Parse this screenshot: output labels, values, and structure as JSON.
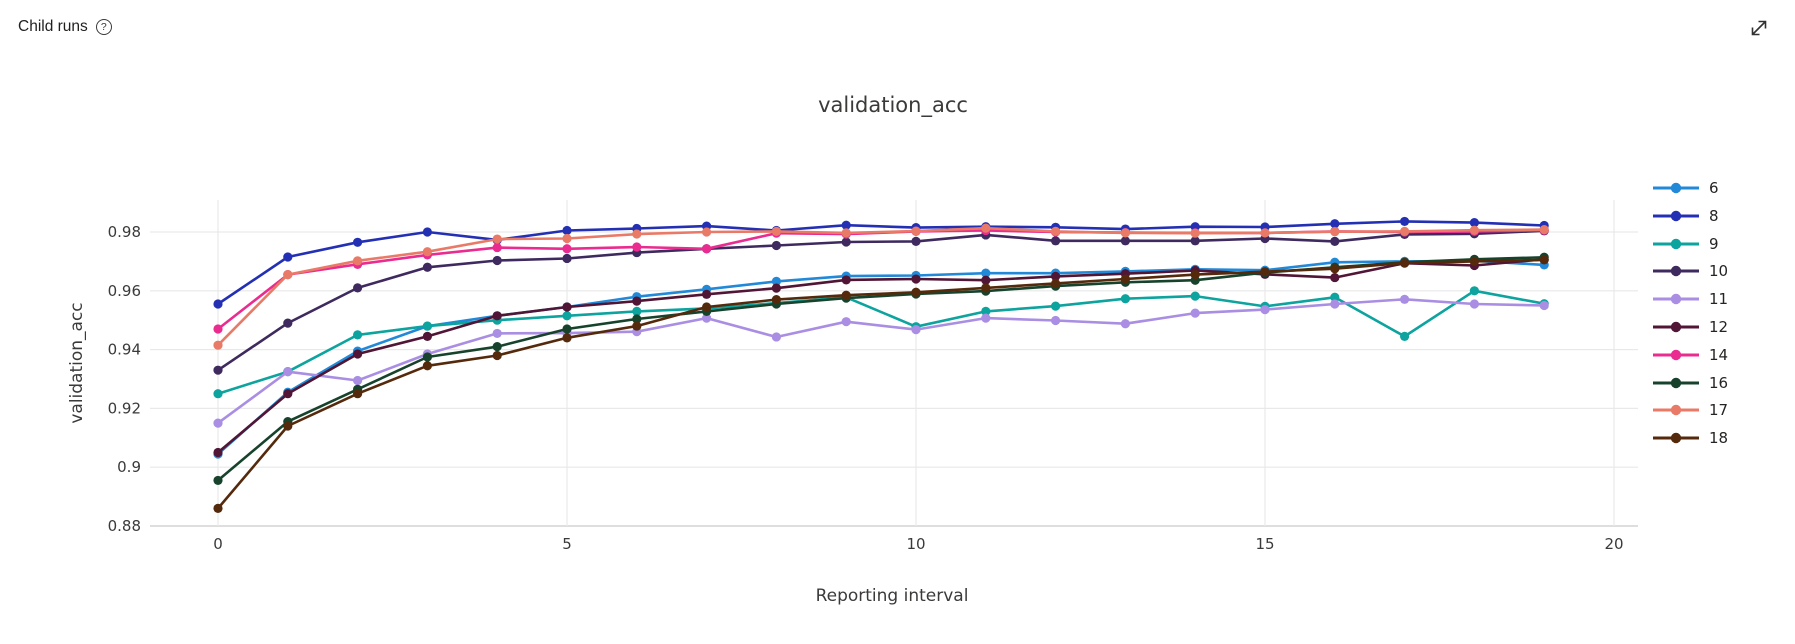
{
  "header": {
    "title": "Child runs",
    "help_icon": "question-mark-circle",
    "expand_icon": "expand-diagonal-arrow"
  },
  "colors": {
    "background": "#ffffff",
    "grid": "#e9e9e9",
    "axis_line": "#d4d4d4",
    "text": "#3b3a39",
    "legend_text": "#252423"
  },
  "chart_data": {
    "type": "line",
    "title": "validation_acc",
    "xlabel": "Reporting interval",
    "ylabel": "validation_acc",
    "grid": true,
    "legend_position": "right",
    "xlim": [
      -1,
      20.3
    ],
    "ylim": [
      0.88,
      0.991
    ],
    "x_ticks": [
      "0",
      "5",
      "10",
      "15",
      "20"
    ],
    "y_ticks": [
      "0.88",
      "0.9",
      "0.92",
      "0.94",
      "0.96",
      "0.98"
    ],
    "x": [
      0,
      1,
      2,
      3,
      4,
      5,
      6,
      7,
      8,
      9,
      10,
      11,
      12,
      13,
      14,
      15,
      16,
      17,
      18,
      19
    ],
    "series": [
      {
        "name": "6",
        "color": "#2189d8",
        "values": [
          0.9045,
          0.9255,
          0.9395,
          0.948,
          0.9515,
          0.9545,
          0.958,
          0.9605,
          0.9632,
          0.965,
          0.9652,
          0.966,
          0.966,
          0.9666,
          0.9673,
          0.967,
          0.9697,
          0.97,
          0.9702,
          0.9688
        ]
      },
      {
        "name": "8",
        "color": "#2430b4",
        "values": [
          0.9555,
          0.9715,
          0.9765,
          0.98,
          0.9773,
          0.9805,
          0.9812,
          0.982,
          0.9805,
          0.9823,
          0.9815,
          0.9818,
          0.9816,
          0.981,
          0.9818,
          0.9817,
          0.9828,
          0.9836,
          0.9832,
          0.9822
        ]
      },
      {
        "name": "9",
        "color": "#0da39e",
        "values": [
          0.925,
          0.9325,
          0.945,
          0.948,
          0.95,
          0.9515,
          0.953,
          0.954,
          0.9558,
          0.9578,
          0.9478,
          0.953,
          0.9548,
          0.9573,
          0.9582,
          0.9547,
          0.9578,
          0.9445,
          0.96,
          0.9556
        ]
      },
      {
        "name": "10",
        "color": "#3e2a5e",
        "values": [
          0.933,
          0.949,
          0.961,
          0.968,
          0.9703,
          0.971,
          0.973,
          0.9743,
          0.9754,
          0.9766,
          0.9768,
          0.979,
          0.977,
          0.977,
          0.977,
          0.9778,
          0.9768,
          0.9792,
          0.9794,
          0.9804
        ]
      },
      {
        "name": "11",
        "color": "#a98ee3",
        "values": [
          0.915,
          0.9325,
          0.9295,
          0.9385,
          0.9455,
          0.9456,
          0.9461,
          0.9507,
          0.9443,
          0.9495,
          0.9468,
          0.9507,
          0.9499,
          0.9488,
          0.9524,
          0.9536,
          0.9555,
          0.9571,
          0.9555,
          0.955
        ]
      },
      {
        "name": "12",
        "color": "#511535",
        "values": [
          0.905,
          0.925,
          0.9385,
          0.9445,
          0.9515,
          0.9545,
          0.9565,
          0.9588,
          0.9609,
          0.9637,
          0.964,
          0.9636,
          0.9649,
          0.9658,
          0.9669,
          0.9656,
          0.9645,
          0.9694,
          0.9686,
          0.9707
        ]
      },
      {
        "name": "14",
        "color": "#ea2c90",
        "values": [
          0.947,
          0.9655,
          0.969,
          0.9722,
          0.9747,
          0.9743,
          0.9749,
          0.9743,
          0.9796,
          0.9793,
          0.9802,
          0.9805,
          0.98,
          0.9798,
          0.9797,
          0.9797,
          0.9802,
          0.98,
          0.9802,
          0.9806
        ]
      },
      {
        "name": "16",
        "color": "#17432c",
        "values": [
          0.8955,
          0.9155,
          0.9265,
          0.9375,
          0.941,
          0.947,
          0.9504,
          0.953,
          0.9555,
          0.9575,
          0.9589,
          0.9599,
          0.9616,
          0.9629,
          0.9636,
          0.9662,
          0.968,
          0.9697,
          0.9707,
          0.9714
        ]
      },
      {
        "name": "17",
        "color": "#e97a67",
        "values": [
          0.9415,
          0.9655,
          0.9702,
          0.9733,
          0.9776,
          0.9778,
          0.9793,
          0.98,
          0.9802,
          0.9797,
          0.9803,
          0.9813,
          0.9802,
          0.9797,
          0.9796,
          0.9797,
          0.9801,
          0.9802,
          0.9806,
          0.9808
        ]
      },
      {
        "name": "18",
        "color": "#552a0c",
        "values": [
          0.886,
          0.914,
          0.925,
          0.9345,
          0.938,
          0.944,
          0.948,
          0.9545,
          0.957,
          0.9585,
          0.9595,
          0.961,
          0.9625,
          0.964,
          0.9655,
          0.9665,
          0.9675,
          0.9695,
          0.97,
          0.9705
        ]
      }
    ]
  }
}
